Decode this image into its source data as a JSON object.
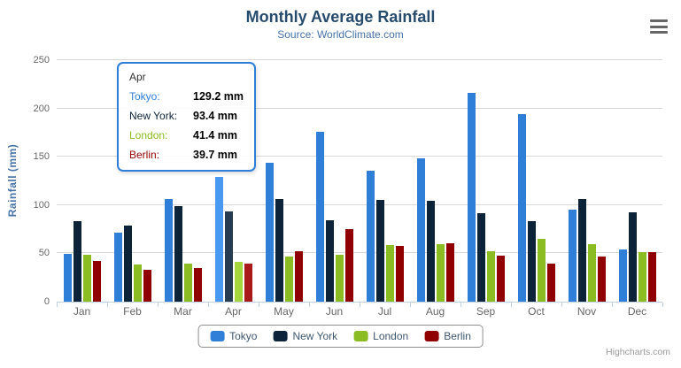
{
  "chart": {
    "credits": "Highcharts.com"
  },
  "chart_data": {
    "type": "bar",
    "title": "Monthly Average Rainfall",
    "subtitle": "Source: WorldClimate.com",
    "categories": [
      "Jan",
      "Feb",
      "Mar",
      "Apr",
      "May",
      "Jun",
      "Jul",
      "Aug",
      "Sep",
      "Oct",
      "Nov",
      "Dec"
    ],
    "series": [
      {
        "name": "Tokyo",
        "color": "#2f7ed8",
        "hover_color": "#4998f2",
        "values": [
          49.9,
          71.5,
          106.4,
          129.2,
          144.0,
          176.0,
          135.6,
          148.5,
          216.4,
          194.1,
          95.6,
          54.4
        ]
      },
      {
        "name": "New York",
        "color": "#0d233a",
        "hover_color": "#273d54",
        "values": [
          83.6,
          78.8,
          98.5,
          93.4,
          106.0,
          84.5,
          105.0,
          104.3,
          91.2,
          83.5,
          106.6,
          92.3
        ]
      },
      {
        "name": "London",
        "color": "#8bbc21",
        "hover_color": "#a5d63b",
        "values": [
          48.9,
          38.8,
          39.3,
          41.4,
          47.0,
          48.3,
          59.0,
          59.6,
          52.4,
          65.2,
          59.3,
          51.2
        ]
      },
      {
        "name": "Berlin",
        "color": "#910000",
        "hover_color": "#ab1a1a",
        "values": [
          42.4,
          33.2,
          34.5,
          39.7,
          52.6,
          75.5,
          57.4,
          60.4,
          47.6,
          39.1,
          46.8,
          51.1
        ]
      }
    ],
    "xlabel": "",
    "ylabel": "Rainfall (mm)",
    "ylim": [
      0,
      250
    ],
    "ytick_step": 50,
    "ytick_labels": [
      "0",
      "50",
      "100",
      "150",
      "200",
      "250"
    ],
    "grid": true,
    "legend_position": "bottom-center",
    "hovered_category_index": 3
  },
  "tooltip": {
    "header": "Apr",
    "border_color": "#2f7ed8",
    "rows": [
      {
        "name": "Tokyo:",
        "value": "129.2 mm",
        "color": "#2f7ed8"
      },
      {
        "name": "New York:",
        "value": "93.4 mm",
        "color": "#0d233a"
      },
      {
        "name": "London:",
        "value": "41.4 mm",
        "color": "#8bbc21"
      },
      {
        "name": "Berlin:",
        "value": "39.7 mm",
        "color": "#910000"
      }
    ]
  },
  "legend": {
    "items": [
      {
        "label": "Tokyo",
        "color": "#2f7ed8"
      },
      {
        "label": "New York",
        "color": "#0d233a"
      },
      {
        "label": "London",
        "color": "#8bbc21"
      },
      {
        "label": "Berlin",
        "color": "#910000"
      }
    ]
  },
  "icons": {
    "context_menu": "hamburger-icon"
  }
}
